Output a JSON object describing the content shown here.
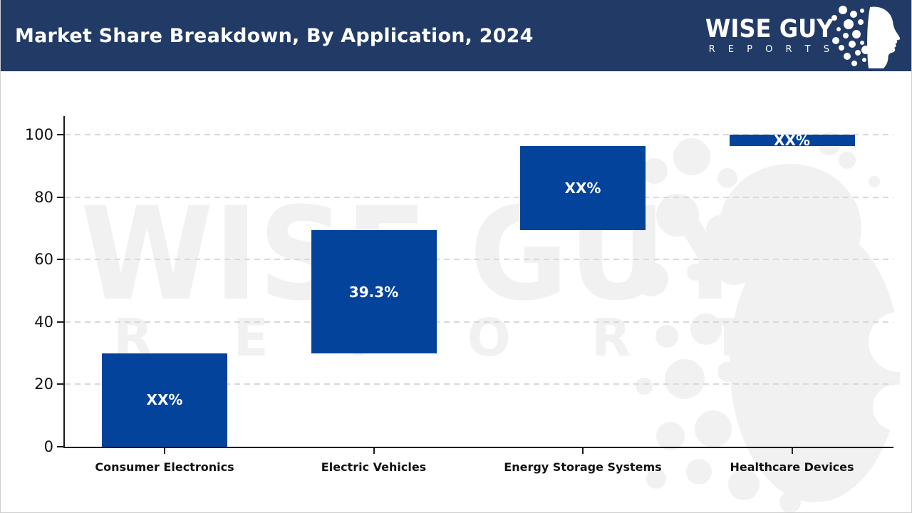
{
  "header": {
    "title": "Market Share Breakdown, By Application, 2024",
    "logo_line1": "WISE GUY",
    "logo_line2": "R E P O R T S"
  },
  "watermark": {
    "line1": "WISE GUY",
    "line2": "R E P O R T S"
  },
  "chart_data": {
    "type": "bar",
    "subtype": "waterfall",
    "title": "Market Share Breakdown, By Application, 2024",
    "categories": [
      "Consumer Electronics",
      "Electric Vehicles",
      "Energy Storage Systems",
      "Healthcare Devices"
    ],
    "segments": [
      {
        "category": "Consumer Electronics",
        "label": "XX%",
        "start": 0,
        "value": 30
      },
      {
        "category": "Electric Vehicles",
        "label": "39.3%",
        "start": 30,
        "value": 39.3
      },
      {
        "category": "Energy Storage Systems",
        "label": "XX%",
        "start": 69.3,
        "value": 27
      },
      {
        "category": "Healthcare Devices",
        "label": "XX%",
        "start": 96.3,
        "value": 3.7
      }
    ],
    "y_ticks": [
      0,
      20,
      40,
      60,
      80,
      100
    ],
    "ylim": [
      0,
      105
    ],
    "xlabel": "",
    "ylabel": "",
    "grid": "horizontal-dashed",
    "legend": "none"
  },
  "colors": {
    "header_bg": "#213a66",
    "bar": "#04439b",
    "bar_label": "#ffffff",
    "axis": "#1a1a1a",
    "gridline": "#d9d9d9",
    "tick_text": "#111111",
    "watermark": "#f1f1f1"
  }
}
